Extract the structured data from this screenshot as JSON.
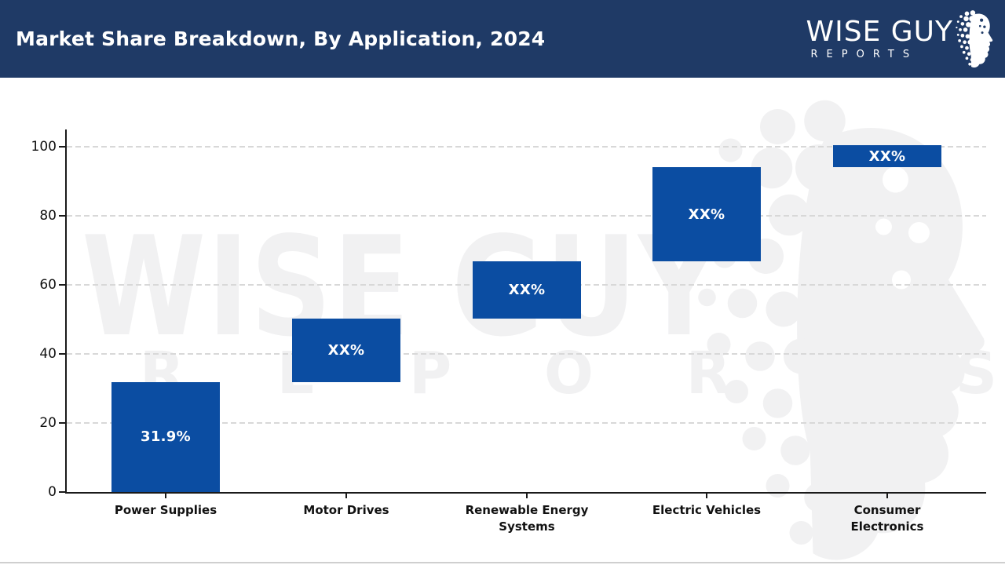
{
  "header": {
    "title": "Market Share Breakdown, By Application, 2024",
    "logo_line1": "WISE GUY",
    "logo_line2": "REPORTS",
    "background_color": "#1f3a66"
  },
  "watermark": {
    "line1": "WISE GUY",
    "line2": "R E P O R T S"
  },
  "chart_data": {
    "type": "bar",
    "subtype": "waterfall",
    "title": "Market Share Breakdown, By Application, 2024",
    "categories": [
      "Power Supplies",
      "Motor Drives",
      "Renewable Energy\nSystems",
      "Electric Vehicles",
      "Consumer\nElectronics"
    ],
    "segments": [
      {
        "category": "Power Supplies",
        "start": 0,
        "end": 31.9,
        "label": "31.9%"
      },
      {
        "category": "Motor Drives",
        "start": 31.9,
        "end": 50.2,
        "label": "XX%"
      },
      {
        "category": "Renewable Energy Systems",
        "start": 50.2,
        "end": 66.8,
        "label": "XX%"
      },
      {
        "category": "Electric Vehicles",
        "start": 66.8,
        "end": 94.0,
        "label": "XX%"
      },
      {
        "category": "Consumer Electronics",
        "start": 94.0,
        "end": 100.4,
        "label": "XX%"
      }
    ],
    "yticks": [
      0,
      20,
      40,
      60,
      80,
      100
    ],
    "ylim": [
      0,
      105
    ],
    "xlabel": "",
    "ylabel": "",
    "grid": "horizontal-dashed",
    "legend": "none",
    "bar_color": "#0b4da2",
    "bar_label_color": "#ffffff",
    "gridline_color": "#d8d8d8",
    "axis_color": "#1a1a1a"
  }
}
